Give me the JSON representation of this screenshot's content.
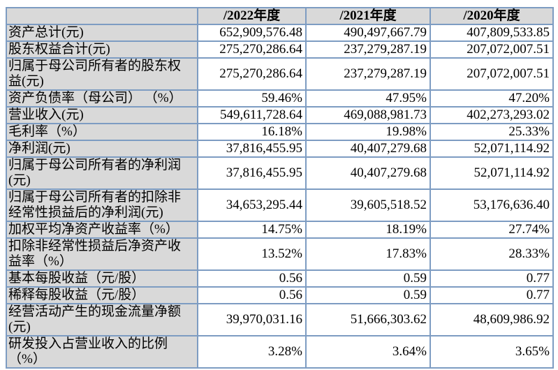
{
  "table": {
    "header": {
      "corner": "",
      "columns": [
        "/2022年度",
        "/2021年度",
        "/2020年度"
      ]
    },
    "rows": [
      {
        "label": "资产总计(元)",
        "values": [
          "652,909,576.48",
          "490,497,667.79",
          "407,809,533.85"
        ]
      },
      {
        "label": "股东权益合计(元)",
        "values": [
          "275,270,286.64",
          "237,279,287.19",
          "207,072,007.51"
        ]
      },
      {
        "label": "归属于母公司所有者的股东权\n益(元)",
        "values": [
          "275,270,286.64",
          "237,279,287.19",
          "207,072,007.51"
        ]
      },
      {
        "label": "资产负债率（母公司） （%）",
        "values": [
          "59.46%",
          "47.95%",
          "47.20%"
        ]
      },
      {
        "label": "营业收入(元)",
        "values": [
          "549,611,728.64",
          "469,088,981.73",
          "402,273,293.02"
        ]
      },
      {
        "label": "毛利率（%）",
        "values": [
          "16.18%",
          "19.98%",
          "25.33%"
        ]
      },
      {
        "label": "净利润(元)",
        "values": [
          "37,816,455.95",
          "40,407,279.68",
          "52,071,114.92"
        ]
      },
      {
        "label": "归属于母公司所有者的净利润\n(元)",
        "values": [
          "37,816,455.95",
          "40,407,279.68",
          "52,071,114.92"
        ]
      },
      {
        "label": "归属于母公司所有者的扣除非\n经常性损益后的净利润(元)",
        "values": [
          "34,653,295.44",
          "39,605,518.52",
          "53,176,636.40"
        ]
      },
      {
        "label": "加权平均净资产收益率（%）",
        "values": [
          "14.75%",
          "18.19%",
          "27.74%"
        ]
      },
      {
        "label": "扣除非经常性损益后净资产收\n益率（%）",
        "values": [
          "13.52%",
          "17.83%",
          "28.33%"
        ]
      },
      {
        "label": "基本每股收益（元/股）",
        "values": [
          "0.56",
          "0.59",
          "0.77"
        ]
      },
      {
        "label": "稀释每股收益（元/股）",
        "values": [
          "0.56",
          "0.59",
          "0.77"
        ]
      },
      {
        "label": "经营活动产生的现金流量净额\n(元)",
        "values": [
          "39,970,031.16",
          "51,666,303.62",
          "48,609,986.92"
        ]
      },
      {
        "label": "研发投入占营业收入的比例\n （%）",
        "values": [
          "3.28%",
          "3.64%",
          "3.65%"
        ]
      }
    ]
  },
  "colors": {
    "border": "#7d9cc2",
    "header_background": "#d9d9d9",
    "label_background": "#d9d9d9",
    "cell_background": "#ffffff",
    "text": "#000000"
  }
}
